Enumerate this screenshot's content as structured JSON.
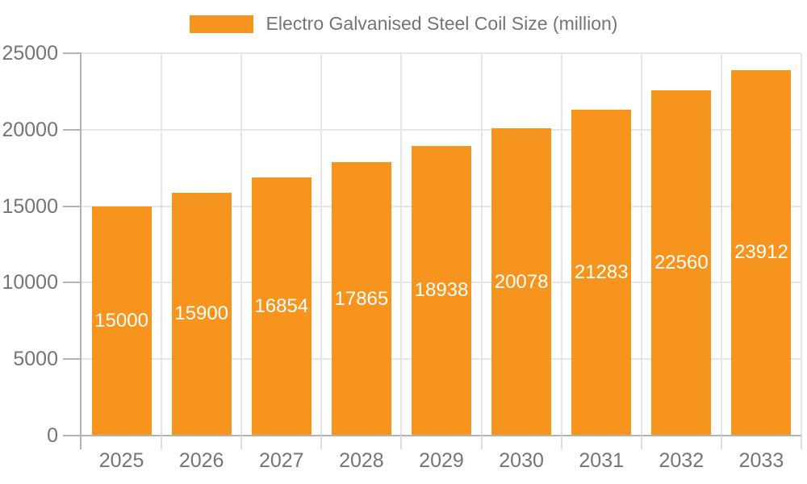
{
  "chart_data": {
    "type": "bar",
    "title": "",
    "legend": {
      "label": "Electro Galvanised Steel Coil Size (million)",
      "position": "top"
    },
    "categories": [
      "2025",
      "2026",
      "2027",
      "2028",
      "2029",
      "2030",
      "2031",
      "2032",
      "2033"
    ],
    "series": [
      {
        "name": "Electro Galvanised Steel Coil Size (million)",
        "values": [
          15000,
          15900,
          16854,
          17865,
          18938,
          20078,
          21283,
          22560,
          23912
        ],
        "color": "#f7941e"
      }
    ],
    "xlabel": "",
    "ylabel": "",
    "ylim": [
      0,
      25000
    ],
    "yticks": [
      0,
      5000,
      10000,
      15000,
      20000,
      25000
    ],
    "grid": true,
    "data_labels": {
      "show": true,
      "placement": "inside-center",
      "color": "#ffffff"
    },
    "styles": {
      "background": "#ffffff",
      "axis_text_color": "#757575",
      "legend_text_color": "#757575",
      "grid_color": "#e6e6e6",
      "axis_line_color": "#b3b3b3",
      "minor_tick_color": "#dddddd"
    }
  }
}
